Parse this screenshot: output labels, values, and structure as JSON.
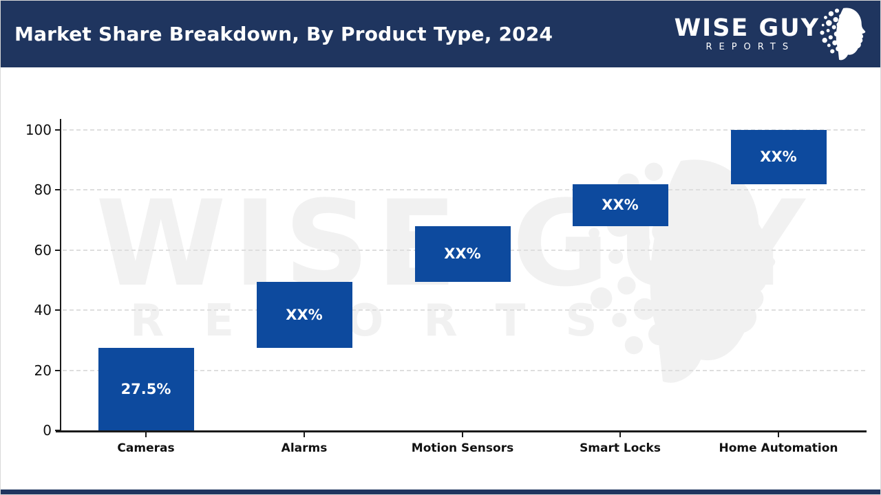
{
  "header": {
    "title": "Market Share Breakdown, By Product Type, 2024",
    "logo": {
      "line1": "WISE GUY",
      "line2": "REPORTS"
    }
  },
  "watermark": {
    "line1": "WISE GUY",
    "line2": "REPORTS"
  },
  "colors": {
    "header_navy": "#1f355f",
    "bar_blue": "#0d4a9e",
    "gridline": "#dedede",
    "watermark_gray": "#f1f1f1",
    "axis_black": "#1a1a1a",
    "bar_label_white": "#ffffff"
  },
  "chart_data": {
    "type": "bar",
    "subtype": "waterfall",
    "title": "Market Share Breakdown, By Product Type, 2024",
    "xlabel": "",
    "ylabel": "",
    "ylim": [
      0,
      104
    ],
    "yticks": [
      0,
      20,
      40,
      60,
      80,
      100
    ],
    "grid": "horizontal dashed",
    "legend": "none",
    "categories": [
      "Cameras",
      "Alarms",
      "Motion Sensors",
      "Smart Locks",
      "Home Automation"
    ],
    "bars": [
      {
        "category": "Cameras",
        "start": 0,
        "end": 27.5,
        "label": "27.5%"
      },
      {
        "category": "Alarms",
        "start": 27.5,
        "end": 49.5,
        "label": "XX%"
      },
      {
        "category": "Motion Sensors",
        "start": 49.5,
        "end": 68.0,
        "label": "XX%"
      },
      {
        "category": "Smart Locks",
        "start": 68.0,
        "end": 82.0,
        "label": "XX%"
      },
      {
        "category": "Home Automation",
        "start": 82.0,
        "end": 100.0,
        "label": "XX%"
      }
    ]
  }
}
